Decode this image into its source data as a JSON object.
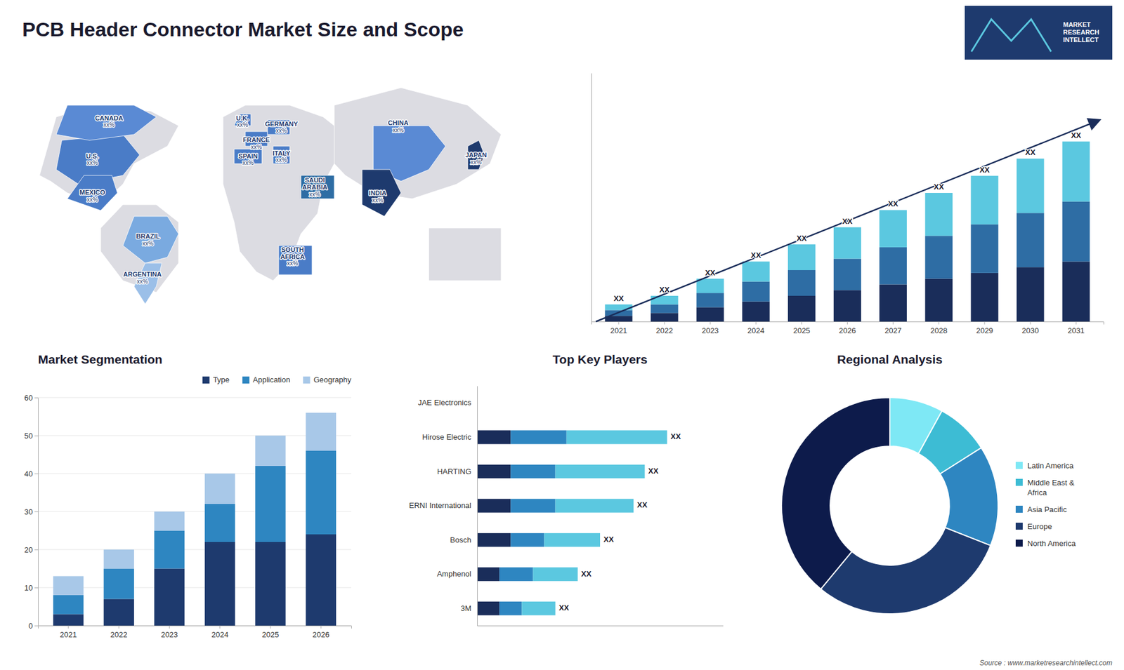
{
  "chart_data": [
    {
      "type": "page",
      "title": "PCB Header Connector Market Size and Scope",
      "annotations": [
        "MARKET\nRESEARCH\nINTELLECT",
        "Source : www.marketresearchintellect.com"
      ]
    },
    {
      "type": "map",
      "categories": [
        "U.S.",
        "CANADA",
        "MEXICO",
        "BRAZIL",
        "ARGENTINA",
        "U.K.",
        "FRANCE",
        "SPAIN",
        "GERMANY",
        "ITALY",
        "SAUDI\nARABIA",
        "SOUTH\nAFRICA",
        "CHINA",
        "INDIA",
        "JAPAN"
      ],
      "colors": [
        "#4a7cc7",
        "#5a8ad4",
        "#4a7cc7",
        "#7aaae0",
        "#9bbfe8",
        "#4a7cc7",
        "#4a7cc7",
        "#4a7cc7",
        "#4a7cc7",
        "#4a7cc7",
        "#2e6da4",
        "#4a7cc7",
        "#5a8ad4",
        "#1e3a6e",
        "#1e3a6e"
      ],
      "annotations": [
        "xx%",
        "xx%",
        "xx%",
        "xx%",
        "xx%",
        "xx%",
        "xx%",
        "xx%",
        "xx%",
        "xx%",
        "xx%",
        "xx%",
        "xx%",
        "xx%",
        "xx%"
      ]
    },
    {
      "type": "bar",
      "stacked": true,
      "categories": [
        "2021",
        "2022",
        "2023",
        "2024",
        "2025",
        "2026",
        "2027",
        "2028",
        "2029",
        "2030",
        "2031"
      ],
      "series": [
        {
          "color": "#1a2d5a",
          "values": [
            2,
            3,
            5,
            7,
            9,
            11,
            13,
            15,
            17,
            19,
            21
          ]
        },
        {
          "color": "#2e6da4",
          "values": [
            2,
            3,
            5,
            7,
            9,
            11,
            13,
            15,
            17,
            19,
            21
          ]
        },
        {
          "color": "#5bc8e0",
          "values": [
            2,
            3,
            5,
            7,
            9,
            11,
            13,
            15,
            17,
            19,
            21
          ]
        }
      ],
      "ylim": [
        0,
        86.94
      ],
      "yticks": [],
      "tick_labels": "x",
      "annotations": [
        "XX",
        "XX",
        "XX",
        "XX",
        "XX",
        "XX",
        "XX",
        "XX",
        "XX",
        "XX",
        "XX"
      ]
    },
    {
      "type": "bar",
      "title": "Market Segmentation",
      "stacked": true,
      "categories": [
        "2021",
        "2022",
        "2023",
        "2024",
        "2025",
        "2026"
      ],
      "series": [
        {
          "name": "Type",
          "color": "#1e3a6e",
          "values": [
            3,
            7,
            15,
            22,
            22,
            24
          ]
        },
        {
          "name": "Application",
          "color": "#2e86c1",
          "values": [
            5,
            8,
            10,
            10,
            20,
            22
          ]
        },
        {
          "name": "Geography",
          "color": "#a8c8e8",
          "values": [
            5,
            5,
            5,
            8,
            8,
            10
          ]
        }
      ],
      "ylim": [
        0,
        60
      ],
      "yticks": [
        0,
        10,
        20,
        30,
        40,
        50,
        60
      ],
      "grid": true,
      "legend": "top"
    },
    {
      "type": "bar",
      "title": "Top Key Players",
      "orientation": "horizontal",
      "stacked": true,
      "categories": [
        "JAE Electronics",
        "Hirose Electric",
        "HARTING",
        "ERNI International",
        "Bosch",
        "Amphenol",
        "3M"
      ],
      "series": [
        {
          "color": "#1a2d5a",
          "values": [
            0,
            3,
            3,
            3,
            3,
            2,
            2
          ]
        },
        {
          "color": "#2e86c1",
          "values": [
            0,
            5,
            4,
            4,
            3,
            3,
            2
          ]
        },
        {
          "color": "#5bc8e0",
          "values": [
            0,
            9,
            8,
            7,
            5,
            4,
            3
          ]
        }
      ],
      "xlim": [
        0,
        22
      ],
      "xticks": [],
      "tick_labels": "y",
      "annotations": [
        null,
        "XX",
        "XX",
        "XX",
        "XX",
        "XX",
        "XX"
      ]
    },
    {
      "type": "donut",
      "title": "Regional Analysis",
      "categories": [
        "Latin America",
        "Middle East &\nAfrica",
        "Asia Pacific",
        "Europe",
        "North America"
      ],
      "values": [
        8,
        8,
        15,
        30,
        39
      ],
      "colors": [
        "#7ee8f5",
        "#3dbcd4",
        "#2e86c1",
        "#1e3a6e",
        "#0d1b4b"
      ],
      "legend": "right"
    }
  ]
}
